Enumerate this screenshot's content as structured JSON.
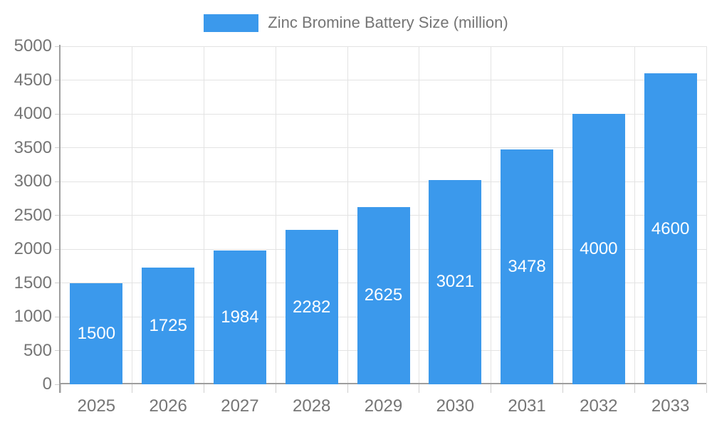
{
  "chart_data": {
    "type": "bar",
    "title": "Zinc Bromine Battery Size (million)",
    "categories": [
      "2025",
      "2026",
      "2027",
      "2028",
      "2029",
      "2030",
      "2031",
      "2032",
      "2033"
    ],
    "values": [
      1500,
      1725,
      1984,
      2282,
      2625,
      3021,
      3478,
      4000,
      4600
    ],
    "xlabel": "",
    "ylabel": "",
    "ylim": [
      0,
      5000
    ],
    "ytick_step": 500,
    "y_tick_labels": [
      "0",
      "500",
      "1000",
      "1500",
      "2000",
      "2500",
      "3000",
      "3500",
      "4000",
      "4500",
      "5000"
    ],
    "grid": true,
    "legend_position": "top-center",
    "value_labels": "inside-center",
    "colors": {
      "bar": "#3B99EC",
      "axis_line": "#9E9E9E",
      "grid_line": "#E3E3E3",
      "tick": "#CFCFCF",
      "axis_text": "#757575",
      "value_label_text": "#FFFFFF",
      "background": "#FFFFFF"
    }
  }
}
